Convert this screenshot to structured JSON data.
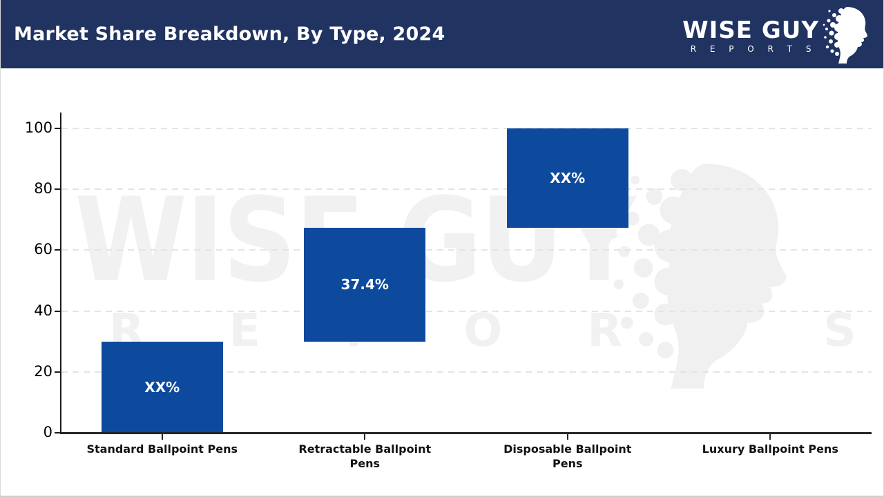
{
  "header": {
    "title": "Market Share Breakdown, By Type, 2024",
    "bg_color": "#203361",
    "logo": {
      "line1": "WISE GUY",
      "line2": "R E P O R T S"
    }
  },
  "watermark": {
    "line1": "WISE GUY",
    "line2": "R E P O R T S"
  },
  "chart_data": {
    "type": "bar",
    "subtype": "waterfall",
    "title": "Market Share Breakdown, By Type, 2024",
    "categories": [
      "Standard Ballpoint Pens",
      "Retractable Ballpoint Pens",
      "Disposable Ballpoint Pens",
      "Luxury Ballpoint Pens"
    ],
    "segments": [
      {
        "category": "Standard Ballpoint Pens",
        "base": 0,
        "top": 30,
        "label": "XX%"
      },
      {
        "category": "Retractable Ballpoint Pens",
        "base": 30,
        "top": 67.4,
        "label": "37.4%"
      },
      {
        "category": "Disposable Ballpoint Pens",
        "base": 67.4,
        "top": 100,
        "label": "XX%"
      },
      {
        "category": "Luxury Ballpoint Pens",
        "base": null,
        "top": null,
        "label": null
      }
    ],
    "yticks": [
      0,
      20,
      40,
      60,
      80,
      100
    ],
    "ylim": [
      0,
      105
    ],
    "xlabel": "",
    "ylabel": "",
    "legend": "none",
    "grid": "dashed-horizontal",
    "bar_color": "#0d4a9e",
    "bar_label_color": "#ffffff",
    "axis_color": "#1a1a1a"
  }
}
